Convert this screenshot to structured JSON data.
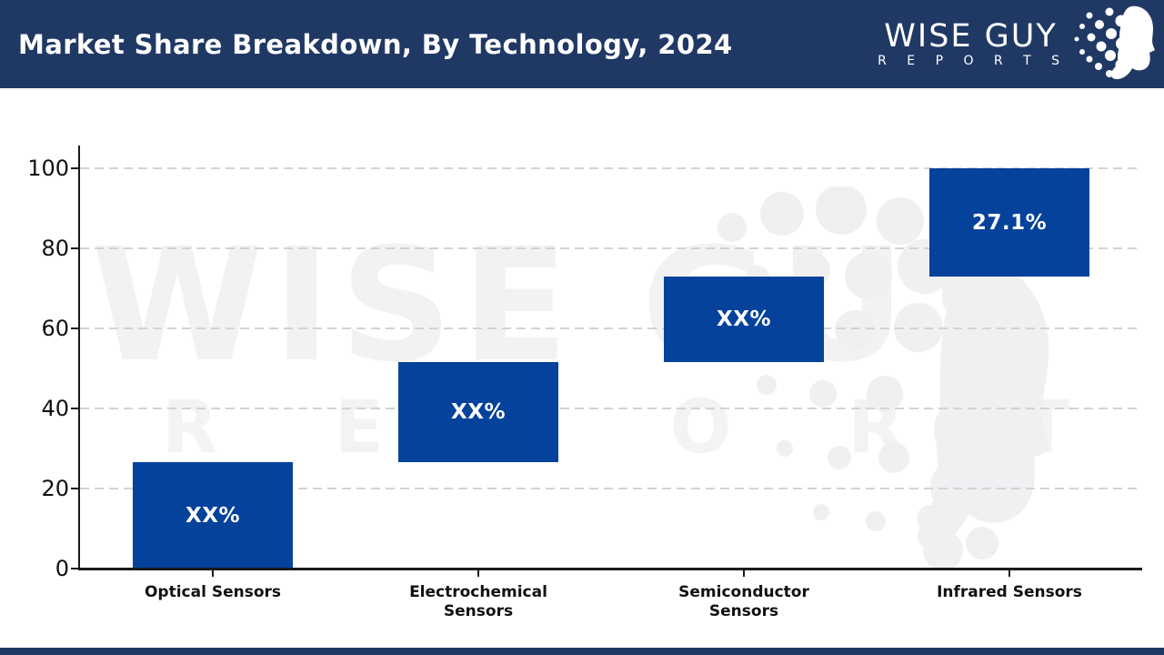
{
  "header": {
    "title": "Market Share Breakdown, By Technology, 2024",
    "bg_color": "#203864",
    "logo": {
      "line1": "WISE GUY",
      "line2": "R E P O R T S"
    }
  },
  "watermark": {
    "line1": "WISE GUY",
    "line2": "R E P O R T S"
  },
  "footer": {
    "bg_color": "#203864"
  },
  "chart_data": {
    "type": "bar",
    "subtype": "waterfall",
    "title": "Market Share Breakdown, By Technology, 2024",
    "xlabel": "",
    "ylabel": "",
    "ylim": [
      0,
      100
    ],
    "yticks": [
      0,
      20,
      40,
      60,
      80,
      100
    ],
    "grid": "horizontal-dashed",
    "legend": "none",
    "bar_color": "#05429C",
    "label_color": "#ffffff",
    "categories": [
      "Optical Sensors",
      "Electrochemical Sensors",
      "Semiconductor Sensors",
      "Infrared Sensors"
    ],
    "bars": [
      {
        "category": "Optical Sensors",
        "category_lines": [
          "Optical Sensors"
        ],
        "start": 0,
        "end": 26.5,
        "value": 26.5,
        "label": "XX%"
      },
      {
        "category": "Electrochemical Sensors",
        "category_lines": [
          "Electrochemical",
          "Sensors"
        ],
        "start": 26.5,
        "end": 51.5,
        "value": 25.0,
        "label": "XX%"
      },
      {
        "category": "Semiconductor Sensors",
        "category_lines": [
          "Semiconductor",
          "Sensors"
        ],
        "start": 51.5,
        "end": 72.9,
        "value": 21.4,
        "label": "XX%"
      },
      {
        "category": "Infrared Sensors",
        "category_lines": [
          "Infrared Sensors"
        ],
        "start": 72.9,
        "end": 100,
        "value": 27.1,
        "label": "27.1%"
      }
    ]
  }
}
